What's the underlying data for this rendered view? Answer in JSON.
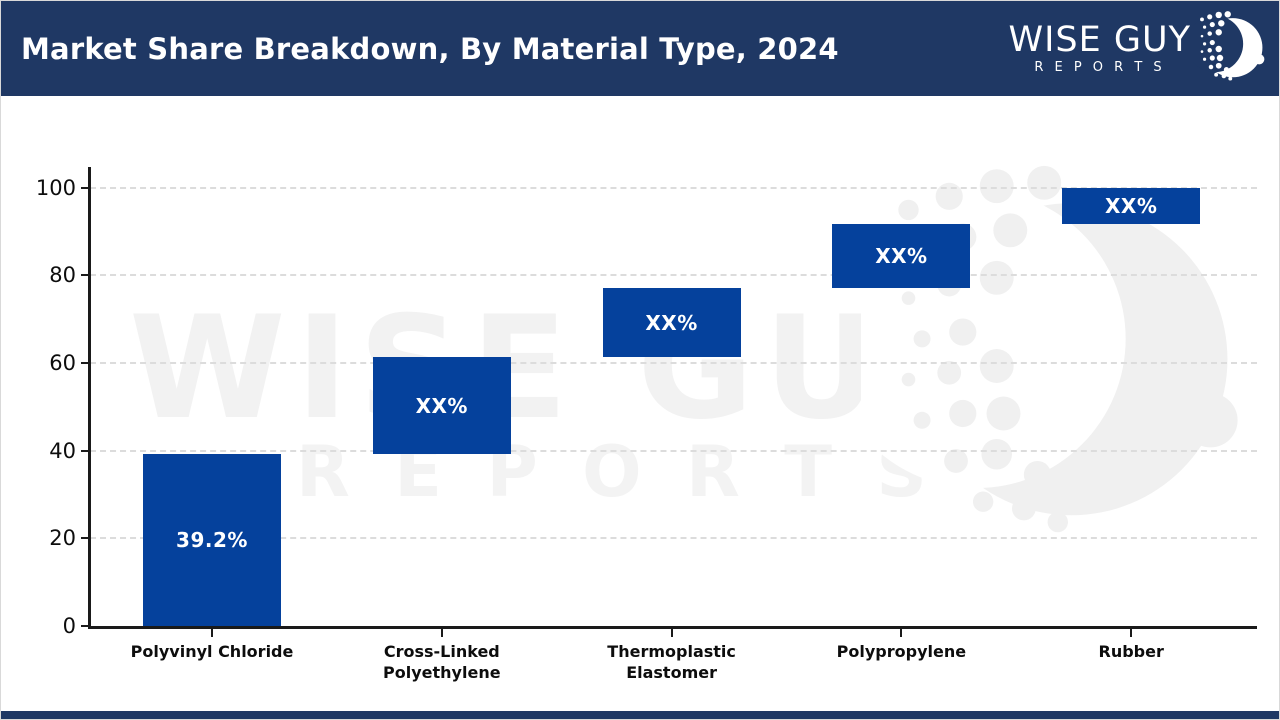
{
  "header": {
    "title": "Market Share Breakdown, By Material Type, 2024",
    "logo": {
      "wordmark": "WISE GUY",
      "subtitle": "R E P O R T S"
    }
  },
  "watermark": {
    "wordmark": "WISE GUY",
    "subtitle": "R E P O R T S"
  },
  "colors": {
    "header_bg": "#1f3864",
    "bar_blue": "#05419c",
    "axis": "#1a1a1a",
    "grid": "#dcdcdc",
    "bar_label_text": "#ffffff",
    "watermark_gray": "#f2f2f2"
  },
  "chart_data": {
    "type": "bar",
    "subtype": "waterfall-stacked-percentage",
    "title": "Market Share Breakdown, By Material Type, 2024",
    "unit": "%",
    "categories": [
      "Polyvinyl Chloride",
      "Cross-Linked Polyethylene",
      "Thermoplastic Elastomer",
      "Polypropylene",
      "Rubber"
    ],
    "segments": [
      {
        "category": "Polyvinyl Chloride",
        "category_display": "Polyvinyl Chloride",
        "start": 0,
        "end": 39.2,
        "value": 39.2,
        "label": "39.2%"
      },
      {
        "category": "Cross-Linked Polyethylene",
        "category_display": "Cross-Linked\nPolyethylene",
        "start": 39.2,
        "end": 61.3,
        "value": 22.1,
        "label": "XX%"
      },
      {
        "category": "Thermoplastic Elastomer",
        "category_display": "Thermoplastic\nElastomer",
        "start": 61.3,
        "end": 77.0,
        "value": 15.7,
        "label": "XX%"
      },
      {
        "category": "Polypropylene",
        "category_display": "Polypropylene",
        "start": 77.0,
        "end": 91.7,
        "value": 14.7,
        "label": "XX%"
      },
      {
        "category": "Rubber",
        "category_display": "Rubber",
        "start": 91.7,
        "end": 99.9,
        "value": 8.2,
        "label": "XX%"
      }
    ],
    "yticks": [
      0,
      20,
      40,
      60,
      80,
      100
    ],
    "ylim": [
      0,
      105
    ],
    "grid": "horizontal-dashed",
    "legend": "none"
  }
}
